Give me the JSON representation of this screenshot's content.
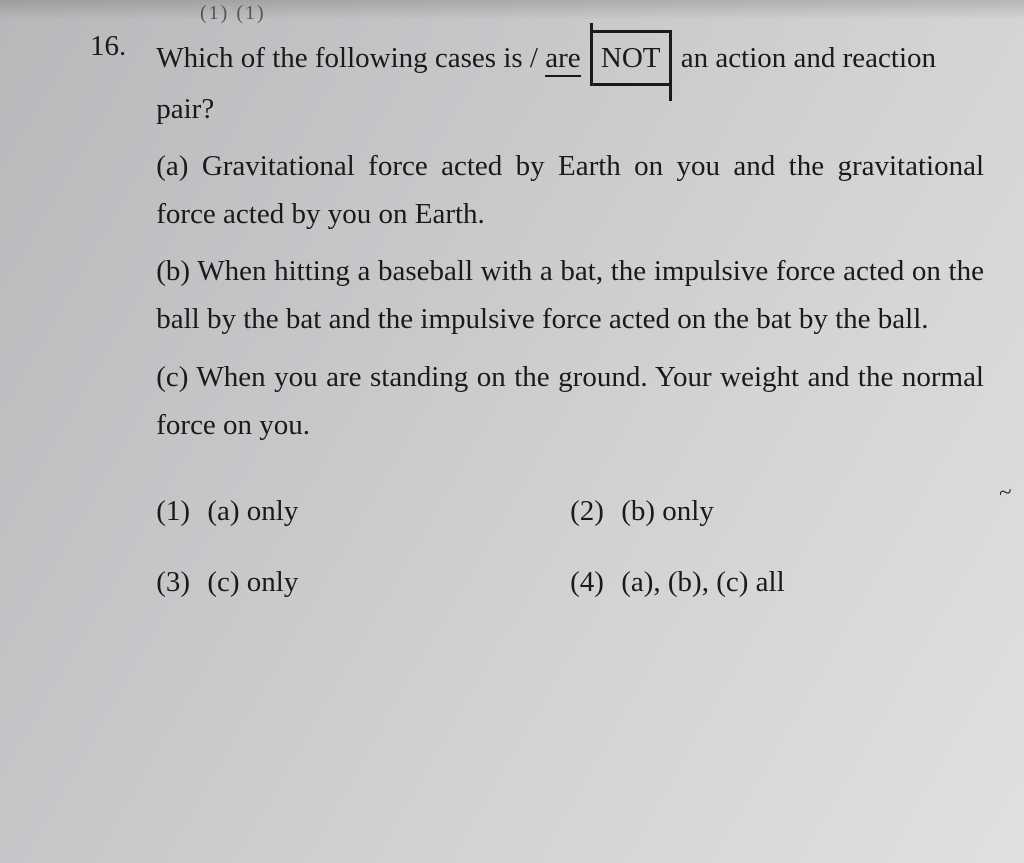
{
  "page": {
    "background_gradient_start": "#b8b8bb",
    "background_gradient_end": "#e0e0e2",
    "text_color": "#1a1a1a",
    "font_family": "Georgia, Times New Roman, serif",
    "body_fontsize": 29
  },
  "top_fragment": "(1)   (1)",
  "question": {
    "number": "16.",
    "stem_before": "Which of the following cases is / ",
    "stem_are": "are",
    "stem_boxed": "NOT",
    "stem_after": " an action and reaction pair?",
    "statements": [
      {
        "label": "(a)",
        "text": "Gravitational force acted by Earth on you and the gravitational force acted by you on Earth."
      },
      {
        "label": "(b)",
        "text": "When hitting a baseball with a bat, the impulsive force acted on the ball by the bat and the impulsive force acted on the bat by the ball."
      },
      {
        "label": "(c)",
        "text": "When you are standing on the ground. Your weight and the normal force on you."
      }
    ],
    "options": [
      {
        "label": "(1)",
        "text": "(a) only"
      },
      {
        "label": "(2)",
        "text": "(b) only"
      },
      {
        "label": "(3)",
        "text": "(c) only"
      },
      {
        "label": "(4)",
        "text": "(a), (b), (c) all"
      }
    ]
  },
  "annotations": {
    "tilde": "~"
  }
}
